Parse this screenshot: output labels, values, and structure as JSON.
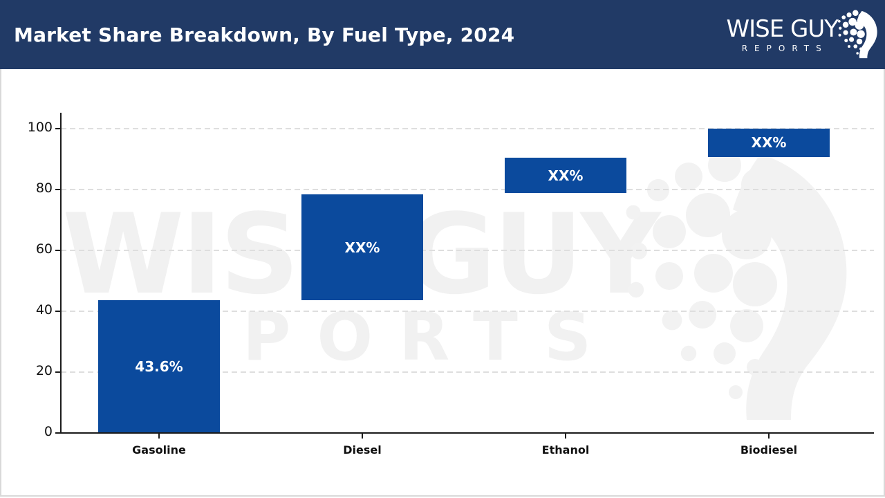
{
  "header": {
    "title": "Market Share Breakdown, By Fuel Type, 2024",
    "logo": {
      "line1": "WISE GUY",
      "line2": "REPORTS"
    }
  },
  "watermark": {
    "line1": "WISE GUY",
    "line2": "REPORTS"
  },
  "chart_data": {
    "type": "bar",
    "subtype": "waterfall",
    "title": "Market Share Breakdown, By Fuel Type, 2024",
    "categories": [
      "Gasoline",
      "Diesel",
      "Ethanol",
      "Biodiesel"
    ],
    "series": [
      {
        "name": "Market share (%)",
        "segments": [
          {
            "category": "Gasoline",
            "start": 0,
            "end": 43.6,
            "label": "43.6%"
          },
          {
            "category": "Diesel",
            "start": 43.6,
            "end": 78.4,
            "label": "XX%"
          },
          {
            "category": "Ethanol",
            "start": 78.8,
            "end": 90.4,
            "label": "XX%"
          },
          {
            "category": "Biodiesel",
            "start": 90.7,
            "end": 100,
            "label": "XX%"
          }
        ]
      }
    ],
    "xlabel": "",
    "ylabel": "",
    "ylim": [
      0,
      100
    ],
    "yticks": [
      0,
      20,
      40,
      60,
      80,
      100
    ],
    "grid": "horizontal-dashed",
    "legend": "none",
    "colors": {
      "bar": "#0b4a9d",
      "bar_label": "#ffffff",
      "grid": "#dedede",
      "axis": "#1a1a1a",
      "header_bg": "#213a66",
      "watermark": "#f1f1f1"
    }
  }
}
